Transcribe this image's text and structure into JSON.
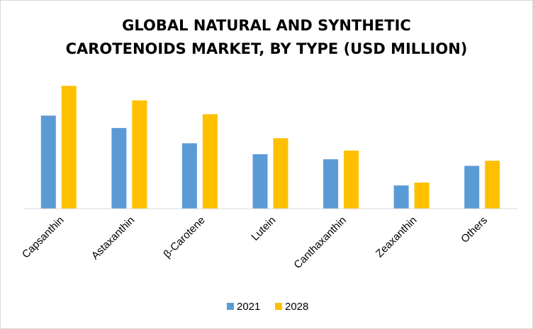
{
  "chart_data": {
    "type": "bar",
    "title_lines": [
      "GLOBAL NATURAL AND SYNTHETIC",
      "CAROTENOIDS MARKET, BY TYPE (USD MILLION)"
    ],
    "xlabel": "",
    "ylabel": "",
    "categories": [
      "Capsanthin",
      "Astaxanthin",
      "β-Carotene",
      "Lutein",
      "Canthaxanthin",
      "Zeaxanthin",
      "Others"
    ],
    "series": [
      {
        "name": "2021",
        "color": "#5b9bd5",
        "values": [
          128,
          111,
          90,
          75,
          68,
          32,
          59
        ]
      },
      {
        "name": "2028",
        "color": "#ffc000",
        "values": [
          169,
          149,
          130,
          97,
          80,
          36,
          66
        ]
      }
    ],
    "ylim": [
      0,
      180
    ],
    "grid": false,
    "y_axis_visible": false,
    "legend_position": "bottom"
  }
}
